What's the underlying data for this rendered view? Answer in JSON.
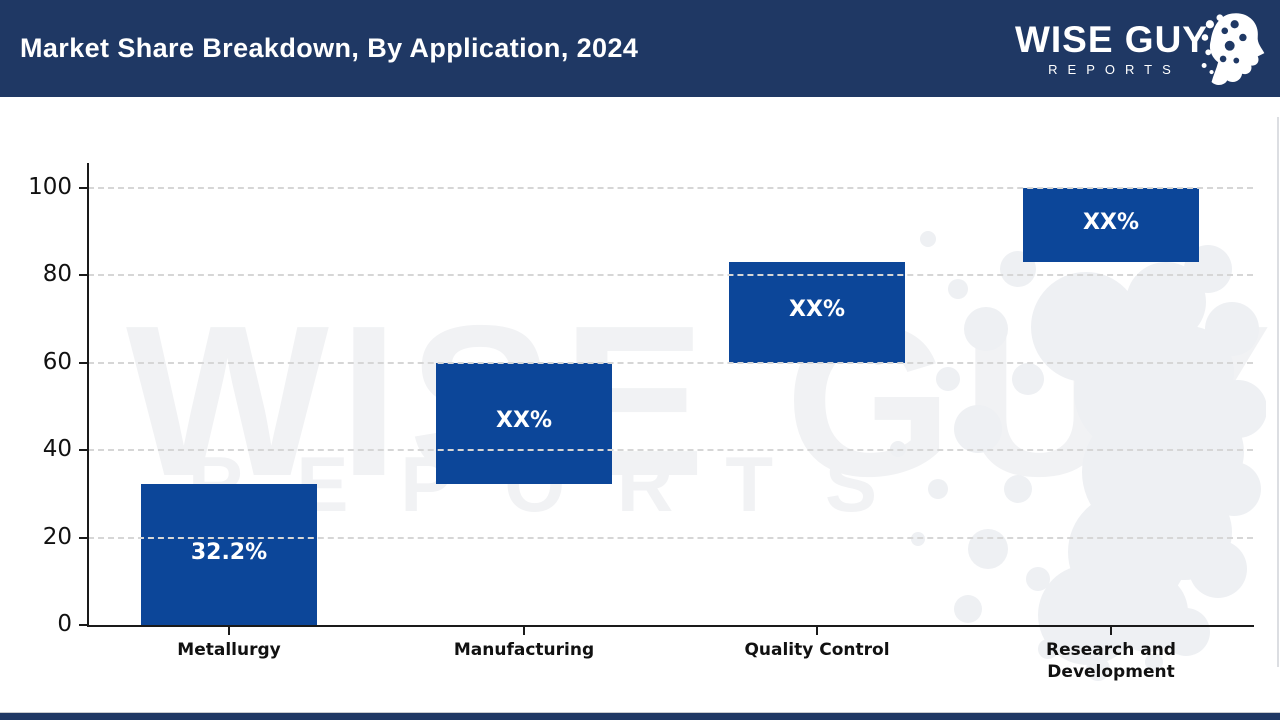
{
  "header": {
    "title": "Market Share Breakdown, By Application, 2024",
    "logo_line1": "WISE GUY",
    "logo_line2": "REPORTS"
  },
  "watermark": {
    "line1": "WISE GUY",
    "line2": "REPORTS"
  },
  "chart_data": {
    "type": "bar",
    "subtype": "waterfall",
    "title": "Market Share Breakdown, By Application, 2024",
    "categories": [
      "Metallurgy",
      "Manufacturing",
      "Quality Control",
      "Research and\nDevelopment"
    ],
    "segments": [
      {
        "category": "Metallurgy",
        "from": 0,
        "to": 32.2,
        "label": "32.2%"
      },
      {
        "category": "Manufacturing",
        "from": 32.2,
        "to": 60,
        "label": "XX%"
      },
      {
        "category": "Quality Control",
        "from": 60,
        "to": 83,
        "label": "XX%"
      },
      {
        "category": "Research and Development",
        "from": 83,
        "to": 100,
        "label": "XX%"
      }
    ],
    "ylim": [
      0,
      100
    ],
    "yticks": [
      0,
      20,
      40,
      60,
      80,
      100
    ],
    "xlabel": "",
    "ylabel": "",
    "legend": "none",
    "grid": "horizontal-dashed",
    "colors": {
      "bar": "#0c4699",
      "header_bg": "#1f3864",
      "grid": "#d6d6d6",
      "axis": "#1a1a1a",
      "bar_label_text": "#ffffff",
      "tick_text": "#111111"
    }
  }
}
